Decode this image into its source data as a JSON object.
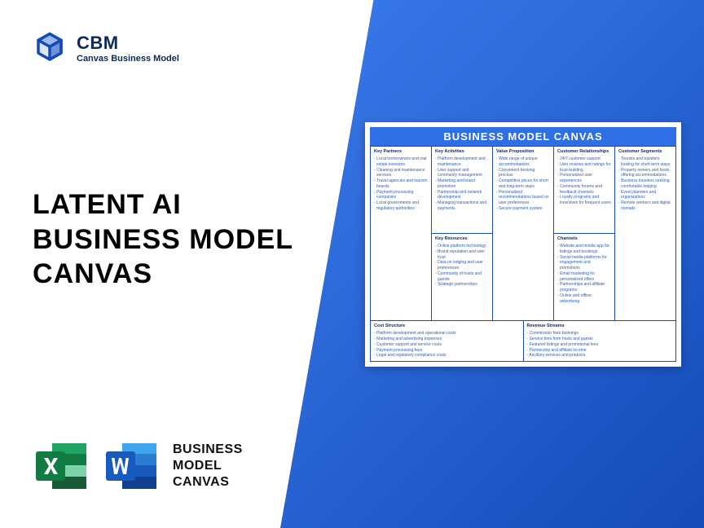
{
  "colors": {
    "brand_blue": "#144bb8",
    "header_blue": "#2f6fe6",
    "border_blue": "#1a4fb5",
    "text_dark": "#0c2a5a",
    "item_blue": "#2f5fb5"
  },
  "logo": {
    "title": "CBM",
    "subtitle": "Canvas Business Model"
  },
  "main_title": {
    "line1": "LATENT AI",
    "line2": "BUSINESS MODEL",
    "line3": "CANVAS"
  },
  "bottom": {
    "line1": "BUSINESS",
    "line2": "MODEL",
    "line3": "CANVAS"
  },
  "canvas": {
    "title": "BUSINESS MODEL CANVAS",
    "partners": {
      "title": "Key Partners",
      "items": [
        "Local homeowners and real estate investors",
        "Cleaning and maintenance services",
        "Travel agencies and tourism boards",
        "Payment processing companies",
        "Local governments and regulatory authorities"
      ]
    },
    "activities": {
      "title": "Key Activities",
      "items": [
        "Platform development and maintenance",
        "User support and community management",
        "Marketing and brand promotion",
        "Partnership and network development",
        "Managing transactions and payments"
      ]
    },
    "resources": {
      "title": "Key Resources",
      "items": [
        "Online platform technology",
        "Brand reputation and user trust",
        "Data on lodging and user preferences",
        "Community of hosts and guests",
        "Strategic partnerships"
      ]
    },
    "value": {
      "title": "Value Proposition",
      "items": [
        "Wide range of unique accommodations",
        "Convenient booking process",
        "Competitive prices for short and long-term stays",
        "Personalized recommendations based on user preferences",
        "Secure payment system"
      ]
    },
    "relationships": {
      "title": "Customer Relationships",
      "items": [
        "24/7 customer support",
        "User reviews and ratings for trust-building",
        "Personalized user experiences",
        "Community forums and feedback channels",
        "Loyalty programs and incentives for frequent users"
      ]
    },
    "channels": {
      "title": "Channels",
      "items": [
        "Website and mobile app for listings and bookings",
        "Social media platforms for engagement and promotions",
        "Email marketing for personalized offers",
        "Partnerships and affiliate programs",
        "Online and offline advertising"
      ]
    },
    "segments": {
      "title": "Customer Segments",
      "items": [
        "Tourists and travelers looking for short-term stays",
        "Property owners and hosts offering accommodations",
        "Business travelers seeking comfortable lodging",
        "Event planners and organizations",
        "Remote workers and digital nomads"
      ]
    },
    "costs": {
      "title": "Cost Structure",
      "items": [
        "Platform development and operational costs",
        "Marketing and advertising expenses",
        "Customer support and service costs",
        "Payment processing fees",
        "Legal and regulatory compliance costs"
      ]
    },
    "revenue": {
      "title": "Revenue Streams",
      "items": [
        "Commission from bookings",
        "Service fees from hosts and guests",
        "Featured listings and promotional fees",
        "Partnership and affiliate income",
        "Ancillary services and products"
      ]
    }
  }
}
